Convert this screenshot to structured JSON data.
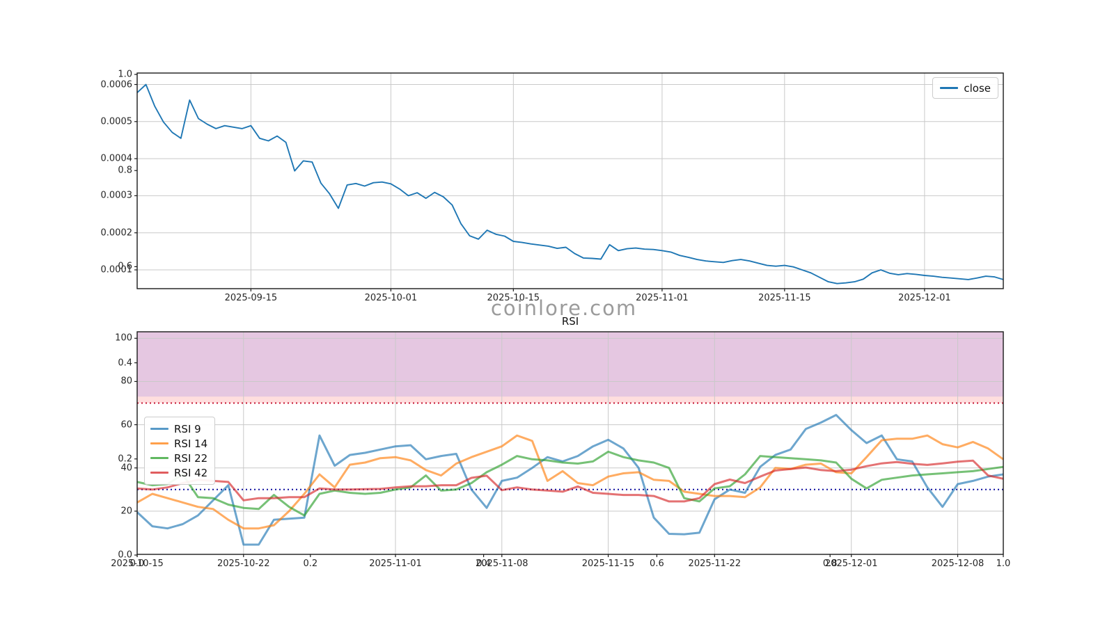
{
  "watermark": "coinlore.com",
  "figure_axis": {
    "x_labels": [
      "0.0",
      "0.2",
      "0.4",
      "0.6",
      "0.8",
      "1.0"
    ],
    "y_labels": [
      "1.0",
      "0.8",
      "0.6",
      "0.4",
      "0.2",
      "0.0"
    ]
  },
  "chart_data": [
    {
      "type": "line",
      "title": "",
      "start_date": "2025-09-02",
      "freq": "daily",
      "grid": true,
      "legend_position": "upper right",
      "x_tick_labels": [
        "2025-09-15",
        "2025-10-01",
        "2025-10-15",
        "2025-11-01",
        "2025-11-15",
        "2025-12-01"
      ],
      "y_tick_labels": [
        "0.0001",
        "0.0002",
        "0.0003",
        "0.0004",
        "0.0005",
        "0.0006"
      ],
      "ylim": [
        5.35e-05,
        0.00063
      ],
      "series": [
        {
          "name": "close",
          "color": "#1f77b4",
          "values": [
            0.000578,
            0.0006,
            0.000542,
            0.000499,
            0.000471,
            0.000455,
            0.000558,
            0.000508,
            0.000493,
            0.000481,
            0.000489,
            0.000485,
            0.000481,
            0.000489,
            0.000455,
            0.000448,
            0.000461,
            0.000444,
            0.000367,
            0.000394,
            0.000391,
            0.000334,
            0.000305,
            0.000266,
            0.000329,
            0.000333,
            0.000326,
            0.000335,
            0.000337,
            0.000332,
            0.000318,
            0.0003,
            0.000308,
            0.000293,
            0.000309,
            0.000297,
            0.000275,
            0.000225,
            0.000192,
            0.000183,
            0.000207,
            0.000196,
            0.000191,
            0.000177,
            0.000174,
            0.00017,
            0.000167,
            0.000164,
            0.000158,
            0.000161,
            0.000144,
            0.000132,
            0.000131,
            0.000129,
            0.000168,
            0.000152,
            0.000157,
            0.000159,
            0.000156,
            0.000155,
            0.000152,
            0.000148,
            0.000139,
            0.000134,
            0.000128,
            0.000124,
            0.000122,
            0.00012,
            0.000125,
            0.000128,
            0.000124,
            0.000118,
            0.000112,
            0.00011,
            0.000112,
            0.000108,
            0.0001,
            9.2e-05,
            8e-05,
            6.8e-05,
            6.3e-05,
            6.5e-05,
            6.8e-05,
            7.5e-05,
            9.2e-05,
            0.0001,
            9.1e-05,
            8.7e-05,
            9e-05,
            8.8e-05,
            8.5e-05,
            8.3e-05,
            8e-05,
            7.8e-05,
            7.6e-05,
            7.4e-05,
            7.8e-05,
            8.3e-05,
            8.1e-05,
            7.4e-05
          ]
        }
      ]
    },
    {
      "type": "line",
      "title": "RSI",
      "start_date": "2025-10-15",
      "freq": "daily",
      "grid": true,
      "legend_position": "center left",
      "x_tick_labels": [
        "2025-10-15",
        "2025-10-22",
        "2025-11-01",
        "2025-11-08",
        "2025-11-15",
        "2025-11-22",
        "2025-12-01",
        "2025-12-08"
      ],
      "y_tick_labels": [
        "20",
        "40",
        "60",
        "80",
        "100"
      ],
      "ylim": [
        0,
        103
      ],
      "bands": [
        {
          "from": 70,
          "to": 103,
          "color": "rgba(255,0,0,0.13)",
          "name": "overbought-zone"
        },
        {
          "from": 0,
          "to": 30,
          "color": "rgba(0,0,255,0.10)",
          "name": "oversold-zone"
        }
      ],
      "hlines": [
        {
          "y": 70,
          "color": "#c51230",
          "style": "dotted",
          "name": "overbought-threshold"
        },
        {
          "y": 30,
          "color": "#0c0c9e",
          "style": "dotted",
          "name": "oversold-threshold"
        }
      ],
      "series": [
        {
          "name": "RSI 9",
          "color": "#1f77b4",
          "opacity": 0.65,
          "values": [
            19.5,
            13,
            12,
            14,
            18,
            25,
            32,
            4.5,
            4.5,
            16,
            16.5,
            17,
            55,
            41,
            46,
            47,
            48.5,
            50,
            50.5,
            44,
            45.5,
            46.5,
            30,
            21.5,
            34,
            35.5,
            40,
            45,
            43,
            45.5,
            50,
            53,
            49,
            40,
            17,
            9.5,
            9.3,
            10,
            25.5,
            30,
            28.5,
            40.5,
            46,
            48.5,
            58,
            61,
            64.5,
            57.5,
            51.5,
            55,
            44,
            43,
            31,
            22,
            32.5,
            34,
            36,
            37
          ]
        },
        {
          "name": "RSI 14",
          "color": "#ff7f0e",
          "opacity": 0.65,
          "values": [
            24,
            28,
            26,
            24,
            22,
            21,
            16,
            12,
            12,
            13.5,
            20,
            28,
            37,
            31,
            41.5,
            42.5,
            44.5,
            45,
            43.5,
            39,
            36.5,
            42,
            45,
            47.5,
            50,
            55,
            52.5,
            34,
            38.5,
            33,
            32,
            36,
            37.5,
            38,
            34.5,
            34,
            29,
            28,
            27,
            27,
            26.5,
            31,
            40,
            39.5,
            41.5,
            42,
            38,
            37.5,
            45,
            52.8,
            53.5,
            53.5,
            55,
            51,
            49.5,
            52,
            49,
            44
          ]
        },
        {
          "name": "RSI 22",
          "color": "#2ca02c",
          "opacity": 0.65,
          "values": [
            33.5,
            32,
            32.5,
            37,
            26.5,
            26,
            23,
            21.5,
            21,
            27.5,
            22,
            18,
            28,
            29.5,
            28.5,
            28,
            28.5,
            30,
            31,
            36.5,
            29.5,
            30,
            33,
            38,
            41.5,
            45.5,
            44,
            43.5,
            42.5,
            42,
            43,
            47.5,
            45,
            43.5,
            42.5,
            40,
            26,
            24.5,
            30.5,
            31.5,
            37,
            45.5,
            45,
            44.5,
            44,
            43.5,
            42.5,
            35,
            30.5,
            34.5,
            35.5,
            36.5,
            37,
            37.5,
            38,
            38.5,
            39.5,
            40.5
          ]
        },
        {
          "name": "RSI 42",
          "color": "#d62728",
          "opacity": 0.65,
          "values": [
            30.5,
            30,
            31,
            33,
            34.5,
            34,
            33.5,
            25,
            26,
            26,
            26.5,
            26.5,
            30.5,
            30,
            30,
            30.2,
            30.3,
            31,
            31.5,
            31.5,
            32,
            32,
            35.4,
            36.4,
            29.7,
            31,
            30,
            29.5,
            29,
            31.4,
            28.5,
            28,
            27.5,
            27.5,
            27,
            24.5,
            24.5,
            26,
            32.5,
            34.6,
            33,
            36,
            38.8,
            39.5,
            40.2,
            39,
            38.5,
            39.2,
            40.8,
            42.1,
            42.7,
            41.9,
            41.4,
            42.1,
            42.9,
            43.4,
            36.5,
            35
          ]
        }
      ]
    }
  ]
}
